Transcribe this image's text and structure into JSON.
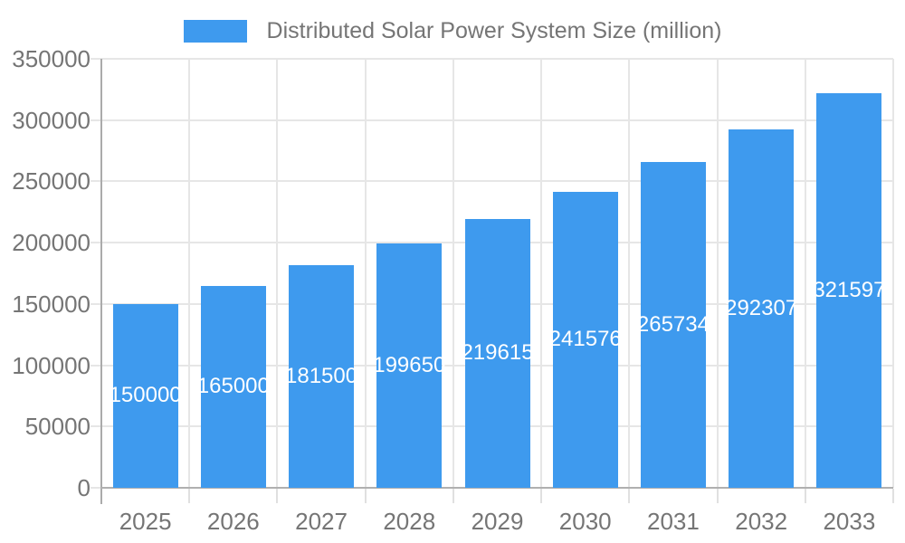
{
  "legend": {
    "label": "Distributed Solar Power System Size (million)"
  },
  "chart_data": {
    "type": "bar",
    "title": "",
    "xlabel": "",
    "ylabel": "",
    "series_name": "Distributed Solar Power System Size (million)",
    "categories": [
      "2025",
      "2026",
      "2027",
      "2028",
      "2029",
      "2030",
      "2031",
      "2032",
      "2033"
    ],
    "values": [
      150000,
      165000,
      181500,
      199650,
      219615,
      241576,
      265734,
      292307,
      321597
    ],
    "bar_labels": [
      "150000",
      "165000",
      "181500",
      "199650",
      "219615",
      "241576",
      "265734",
      "292307",
      "321597"
    ],
    "ylim": [
      0,
      350000
    ],
    "y_ticks": [
      0,
      50000,
      100000,
      150000,
      200000,
      250000,
      300000,
      350000
    ],
    "grid": true,
    "legend_position": "top",
    "colors": {
      "bar": "#3e9aee",
      "bar_label": "#ffffff",
      "tick_label": "#757575",
      "gridline": "#e6e6e6",
      "axis_line": "#b0b0b0",
      "legend_text": "#757575"
    }
  }
}
